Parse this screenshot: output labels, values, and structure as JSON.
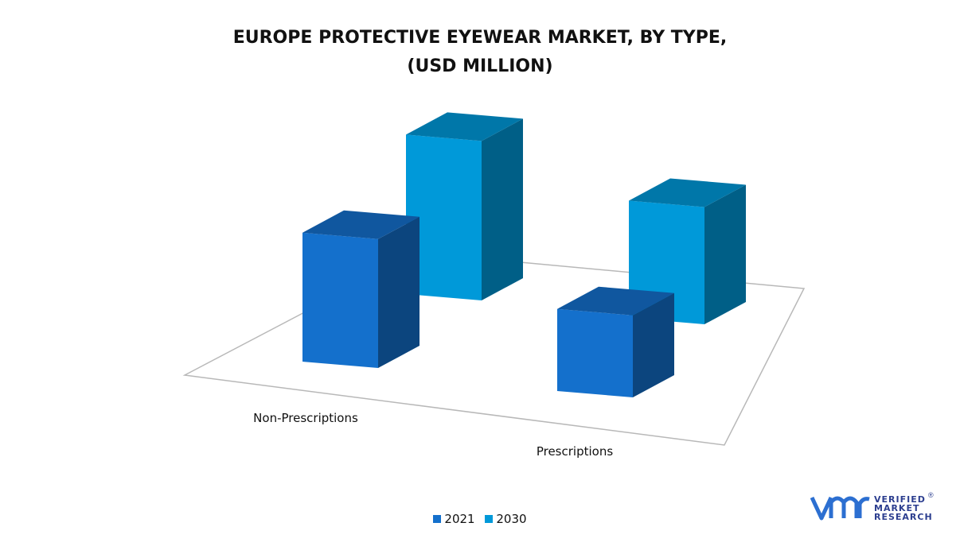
{
  "chart_data": {
    "type": "bar",
    "style": "3d-clustered",
    "title": "EUROPE PROTECTIVE EYEWEAR MARKET, BY TYPE,",
    "subtitle": "(USD MILLION)",
    "categories": [
      "Non-Prescriptions",
      "Prescriptions"
    ],
    "series": [
      {
        "name": "2021",
        "values": [
          55,
          35
        ],
        "color": "#1470cc"
      },
      {
        "name": "2030",
        "values": [
          68,
          50
        ],
        "color": "#0099d9"
      }
    ],
    "ylim": [
      0,
      80
    ],
    "grid": false,
    "legend_position": "bottom"
  },
  "legend": {
    "items": [
      "2021",
      "2030"
    ]
  },
  "logo": {
    "line1": "VERIFIED",
    "line2": "MARKET",
    "line3": "RESEARCH",
    "mark": "®"
  }
}
